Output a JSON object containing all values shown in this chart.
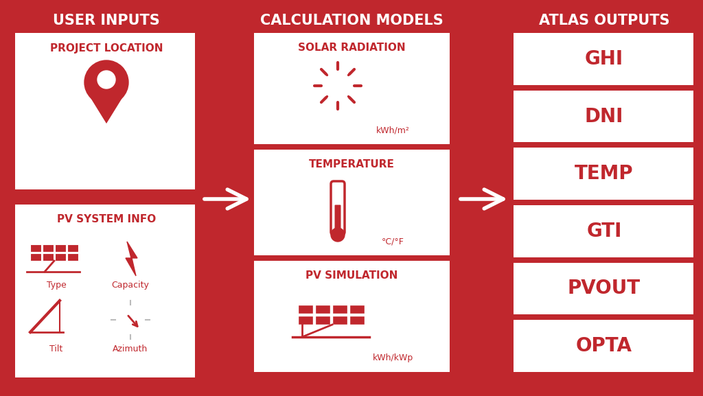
{
  "bg_color": "#C0272D",
  "white": "#FFFFFF",
  "red": "#C0272D",
  "col1_title": "USER INPUTS",
  "col2_title": "CALCULATION MODELS",
  "col3_title": "ATLAS OUTPUTS",
  "box1_title": "PROJECT LOCATION",
  "box2_title": "PV SYSTEM INFO",
  "calc_titles": [
    "SOLAR RADIATION",
    "TEMPERATURE",
    "PV SIMULATION"
  ],
  "calc_units": [
    "kWh/m²",
    "°C/°F",
    "kWh/kWp"
  ],
  "output_labels": [
    "GHI",
    "DNI",
    "TEMP",
    "GTI",
    "PVOUT",
    "OPTA"
  ],
  "icon_labels_row1": [
    "Type",
    "Capacity"
  ],
  "icon_labels_row2": [
    "Tilt",
    "Azimuth"
  ],
  "figsize": [
    10.24,
    5.77
  ],
  "dpi": 100
}
